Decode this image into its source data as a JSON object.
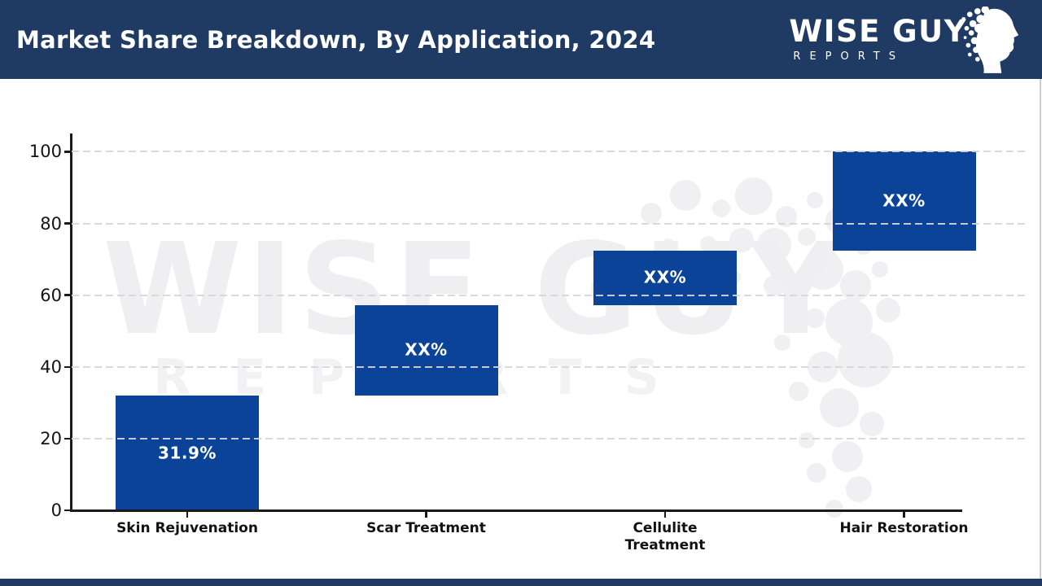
{
  "header": {
    "title": "Market Share Breakdown, By Application, 2024",
    "logo": {
      "line1": "WISE GUY",
      "line2": "REPORTS"
    }
  },
  "watermark": {
    "line1": "WISE GUY",
    "line2": "REPORTS"
  },
  "colors": {
    "header_bg": "#1f3a63",
    "bar": "#0b4399",
    "grid": "#d6d6da",
    "axis": "#1a1a1a",
    "bar_label_text": "#ffffff",
    "watermark": "#efeff2"
  },
  "chart_data": {
    "type": "bar",
    "subtype": "waterfall",
    "title": "Market Share Breakdown, By Application, 2024",
    "categories": [
      "Skin Rejuvenation",
      "Scar Treatment",
      "Cellulite\nTreatment",
      "Hair Restoration"
    ],
    "segments": [
      {
        "category": "Skin Rejuvenation",
        "start": 0,
        "end": 31.9,
        "label": "31.9%"
      },
      {
        "category": "Scar Treatment",
        "start": 31.9,
        "end": 57.3,
        "label": "XX%"
      },
      {
        "category": "Cellulite Treatment",
        "start": 57.3,
        "end": 72.3,
        "label": "XX%"
      },
      {
        "category": "Hair Restoration",
        "start": 72.3,
        "end": 100,
        "label": "XX%"
      }
    ],
    "ylim": [
      0,
      100
    ],
    "yticks": [
      0,
      20,
      40,
      60,
      80,
      100
    ],
    "xlabel": "",
    "ylabel": "",
    "grid": "horizontal-dashed-above-bars",
    "legend": "none"
  }
}
